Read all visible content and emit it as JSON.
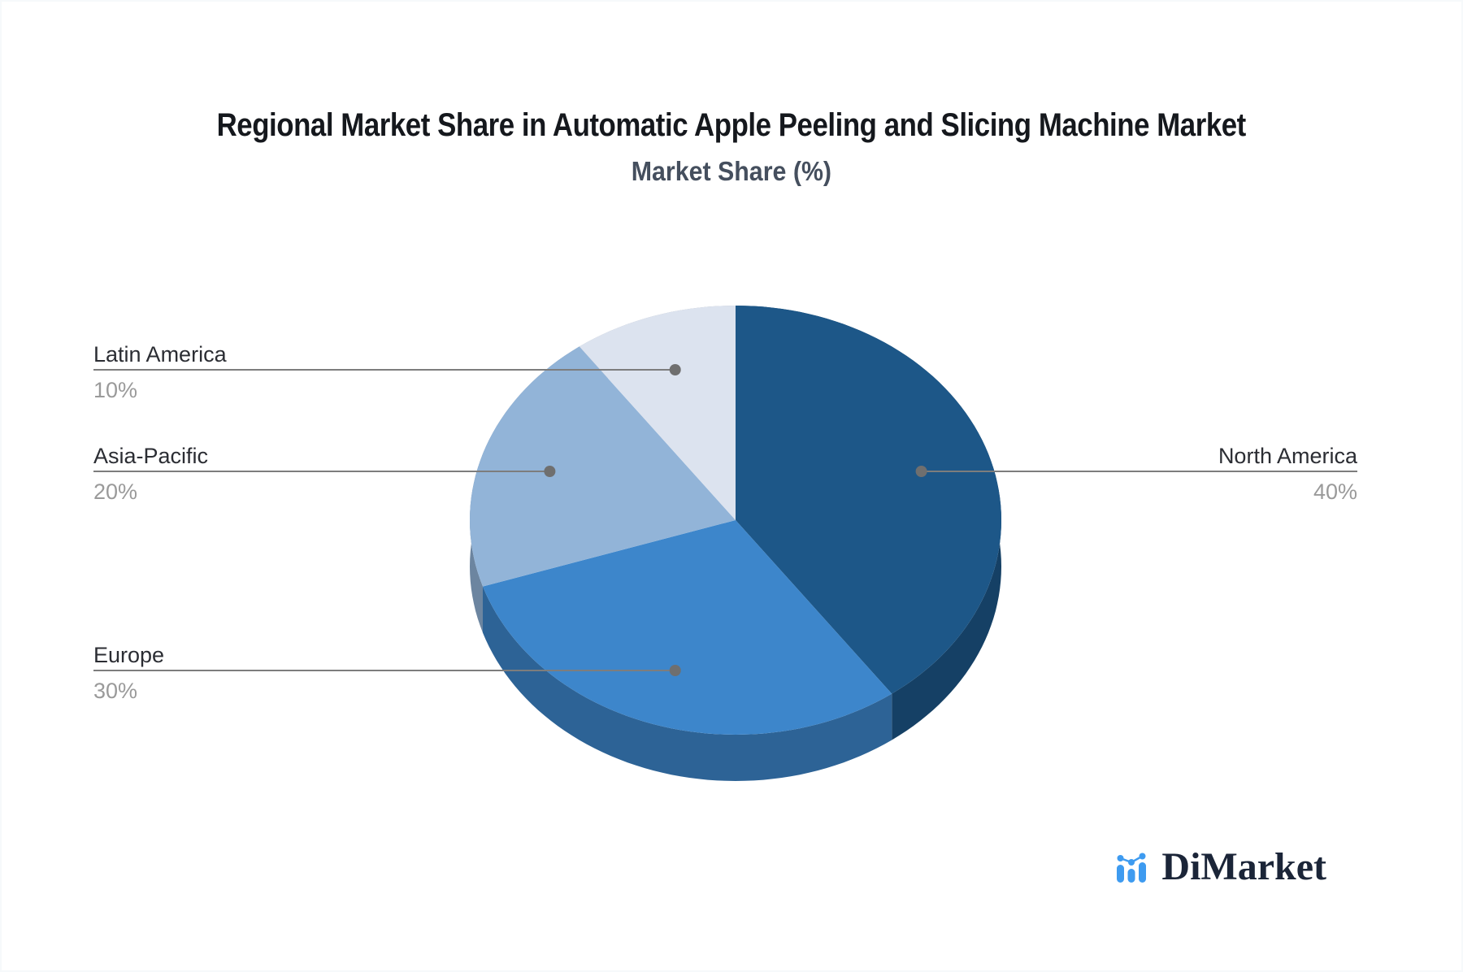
{
  "header": {
    "title": "Regional Market Share in Automatic Apple Peeling and Slicing Machine Market",
    "subtitle": "Market Share (%)"
  },
  "chart_data": {
    "type": "pie",
    "style": "3d",
    "title": "Regional Market Share in Automatic Apple Peeling and Slicing Machine Market",
    "subtitle": "Market Share (%)",
    "unit": "%",
    "start_angle_deg": 0,
    "direction": "clockwise",
    "legend_position": "none",
    "labels": [
      "North America",
      "Europe",
      "Asia-Pacific",
      "Latin America"
    ],
    "values": [
      40,
      30,
      20,
      10
    ],
    "slices": [
      {
        "label": "North America",
        "value": 40,
        "pct_label": "40%",
        "color": "#1d5788",
        "callout_side": "right"
      },
      {
        "label": "Europe",
        "value": 30,
        "pct_label": "30%",
        "color": "#3d86cb",
        "callout_side": "left"
      },
      {
        "label": "Asia-Pacific",
        "value": 20,
        "pct_label": "20%",
        "color": "#92b4d8",
        "callout_side": "left"
      },
      {
        "label": "Latin America",
        "value": 10,
        "pct_label": "10%",
        "color": "#dce3ef",
        "callout_side": "left"
      }
    ],
    "callout_line_color": "#7d7d7d",
    "callout_dot_color": "#6f6f6f",
    "label_text_color": "#2b2d33",
    "pct_text_color": "#9a9a9a"
  },
  "branding": {
    "name": "DiMarket",
    "icon": "bar-chart-trend-icon",
    "icon_color": "#3e9bf0",
    "wordmark_color": "#1b2538"
  }
}
